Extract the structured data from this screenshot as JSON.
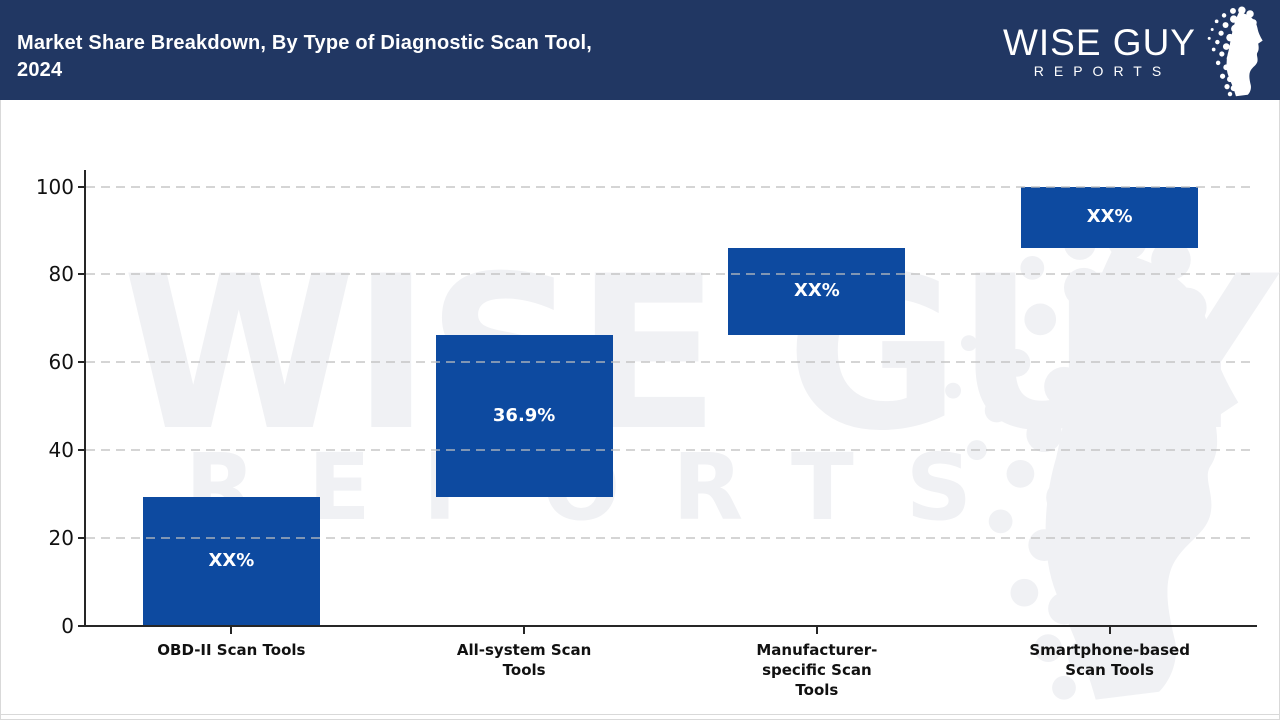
{
  "header": {
    "title_lines": [
      "Market Share Breakdown, By Type of Diagnostic Scan Tool,",
      "2024"
    ],
    "bg_color": "#213763",
    "logo": {
      "wordmark": "WISE GUY",
      "subtext": "REPORTS"
    }
  },
  "watermark": {
    "wordmark": "WISE GUY",
    "subtext": "REPORTS"
  },
  "chart_data": {
    "type": "bar",
    "subtype": "floating-waterfall-segments",
    "title": "Market Share Breakdown, By Type of Diagnostic Scan Tool, 2024",
    "xlabel": "",
    "ylabel": "",
    "ylim": [
      0,
      104
    ],
    "yticks": [
      0,
      20,
      40,
      60,
      80,
      100
    ],
    "grid": "horizontal-dashed",
    "legend": "none",
    "bar_color": "#0d4aa0",
    "bar_label_color": "#ffffff",
    "categories": [
      "OBD-II Scan Tools",
      "All-system Scan Tools",
      "Manufacturer-specific Scan Tools",
      "Smartphone-based Scan Tools"
    ],
    "bars": [
      {
        "category_wrapped": "OBD-II Scan Tools",
        "start": 0,
        "end": 29.4,
        "value_label": "XX%"
      },
      {
        "category_wrapped": "All-system Scan\nTools",
        "start": 29.4,
        "end": 66.3,
        "value_label": "36.9%"
      },
      {
        "category_wrapped": "Manufacturer-\nspecific Scan\nTools",
        "start": 66.3,
        "end": 86.1,
        "value_label": "XX%"
      },
      {
        "category_wrapped": "Smartphone-based\nScan Tools",
        "start": 86.1,
        "end": 100,
        "value_label": "XX%"
      }
    ]
  }
}
